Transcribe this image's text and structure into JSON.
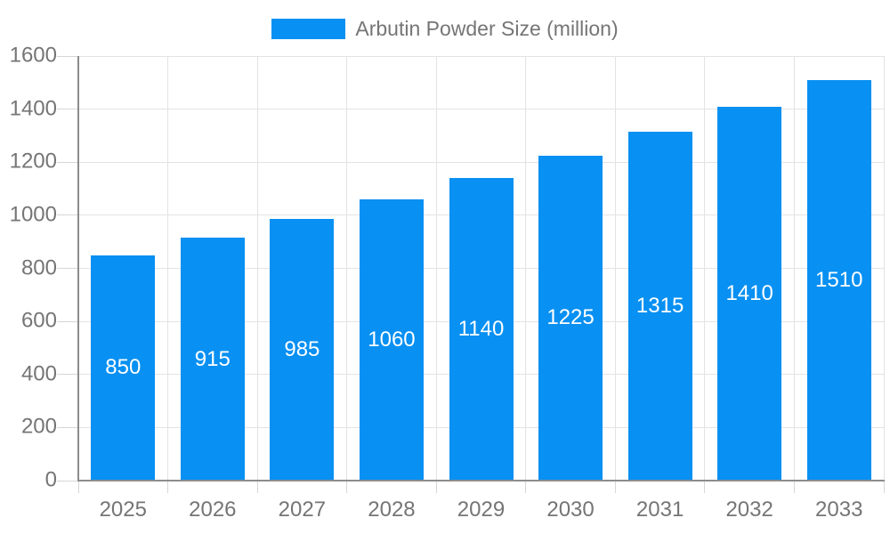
{
  "chart_data": {
    "type": "bar",
    "title": "Arbutin Powder Size (million)",
    "categories": [
      "2025",
      "2026",
      "2027",
      "2028",
      "2029",
      "2030",
      "2031",
      "2032",
      "2033"
    ],
    "values": [
      850,
      915,
      985,
      1060,
      1140,
      1225,
      1315,
      1410,
      1510
    ],
    "xlabel": "",
    "ylabel": "",
    "ylim": [
      0,
      1600
    ],
    "ytick_step": 200,
    "yticks": [
      0,
      200,
      400,
      600,
      800,
      1000,
      1200,
      1400,
      1600
    ],
    "grid": true,
    "legend_position": "top",
    "value_label_position": "inside-center",
    "bar_color": "#0890f2"
  },
  "colors": {
    "bar": "#0890f2",
    "grid": "#e3e3e3",
    "tick": "#d6d6d6",
    "axis": "#8c8c8c",
    "axis_text": "#757575",
    "legend_text": "#757575",
    "value_text": "#ffffff",
    "background": "#ffffff"
  }
}
